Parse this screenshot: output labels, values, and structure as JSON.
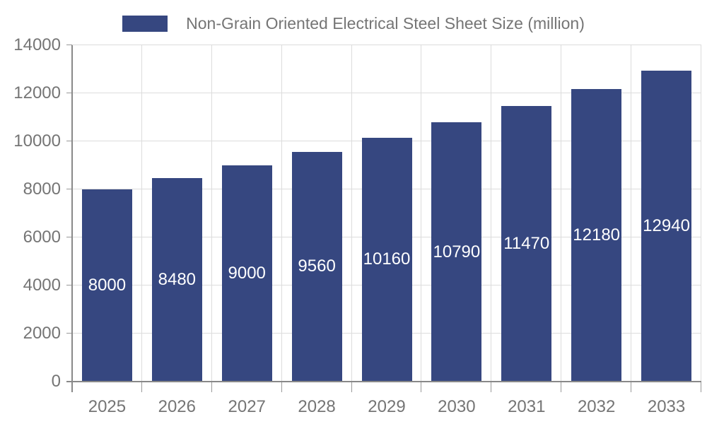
{
  "chart_data": {
    "type": "bar",
    "title": "",
    "categories": [
      "2025",
      "2026",
      "2027",
      "2028",
      "2029",
      "2030",
      "2031",
      "2032",
      "2033"
    ],
    "series": [
      {
        "name": "Non-Grain Oriented Electrical Steel Sheet Size (million)",
        "values": [
          8000,
          8480,
          9000,
          9560,
          10160,
          10790,
          11470,
          12180,
          12940
        ]
      }
    ],
    "xlabel": "",
    "ylabel": "",
    "ylim": [
      0,
      14000
    ],
    "yticks": [
      0,
      2000,
      4000,
      6000,
      8000,
      10000,
      12000,
      14000
    ],
    "grid": true,
    "legend_position": "top",
    "bar_value_label_position": "inside-middle",
    "colors": {
      "bar": "#364780",
      "bar_label": "#ffffff",
      "axis": "#898989",
      "tick": "#999999",
      "gridline": "#dcdcdc",
      "tick_label": "#757575",
      "legend_text": "#757575",
      "background": "#ffffff"
    }
  }
}
